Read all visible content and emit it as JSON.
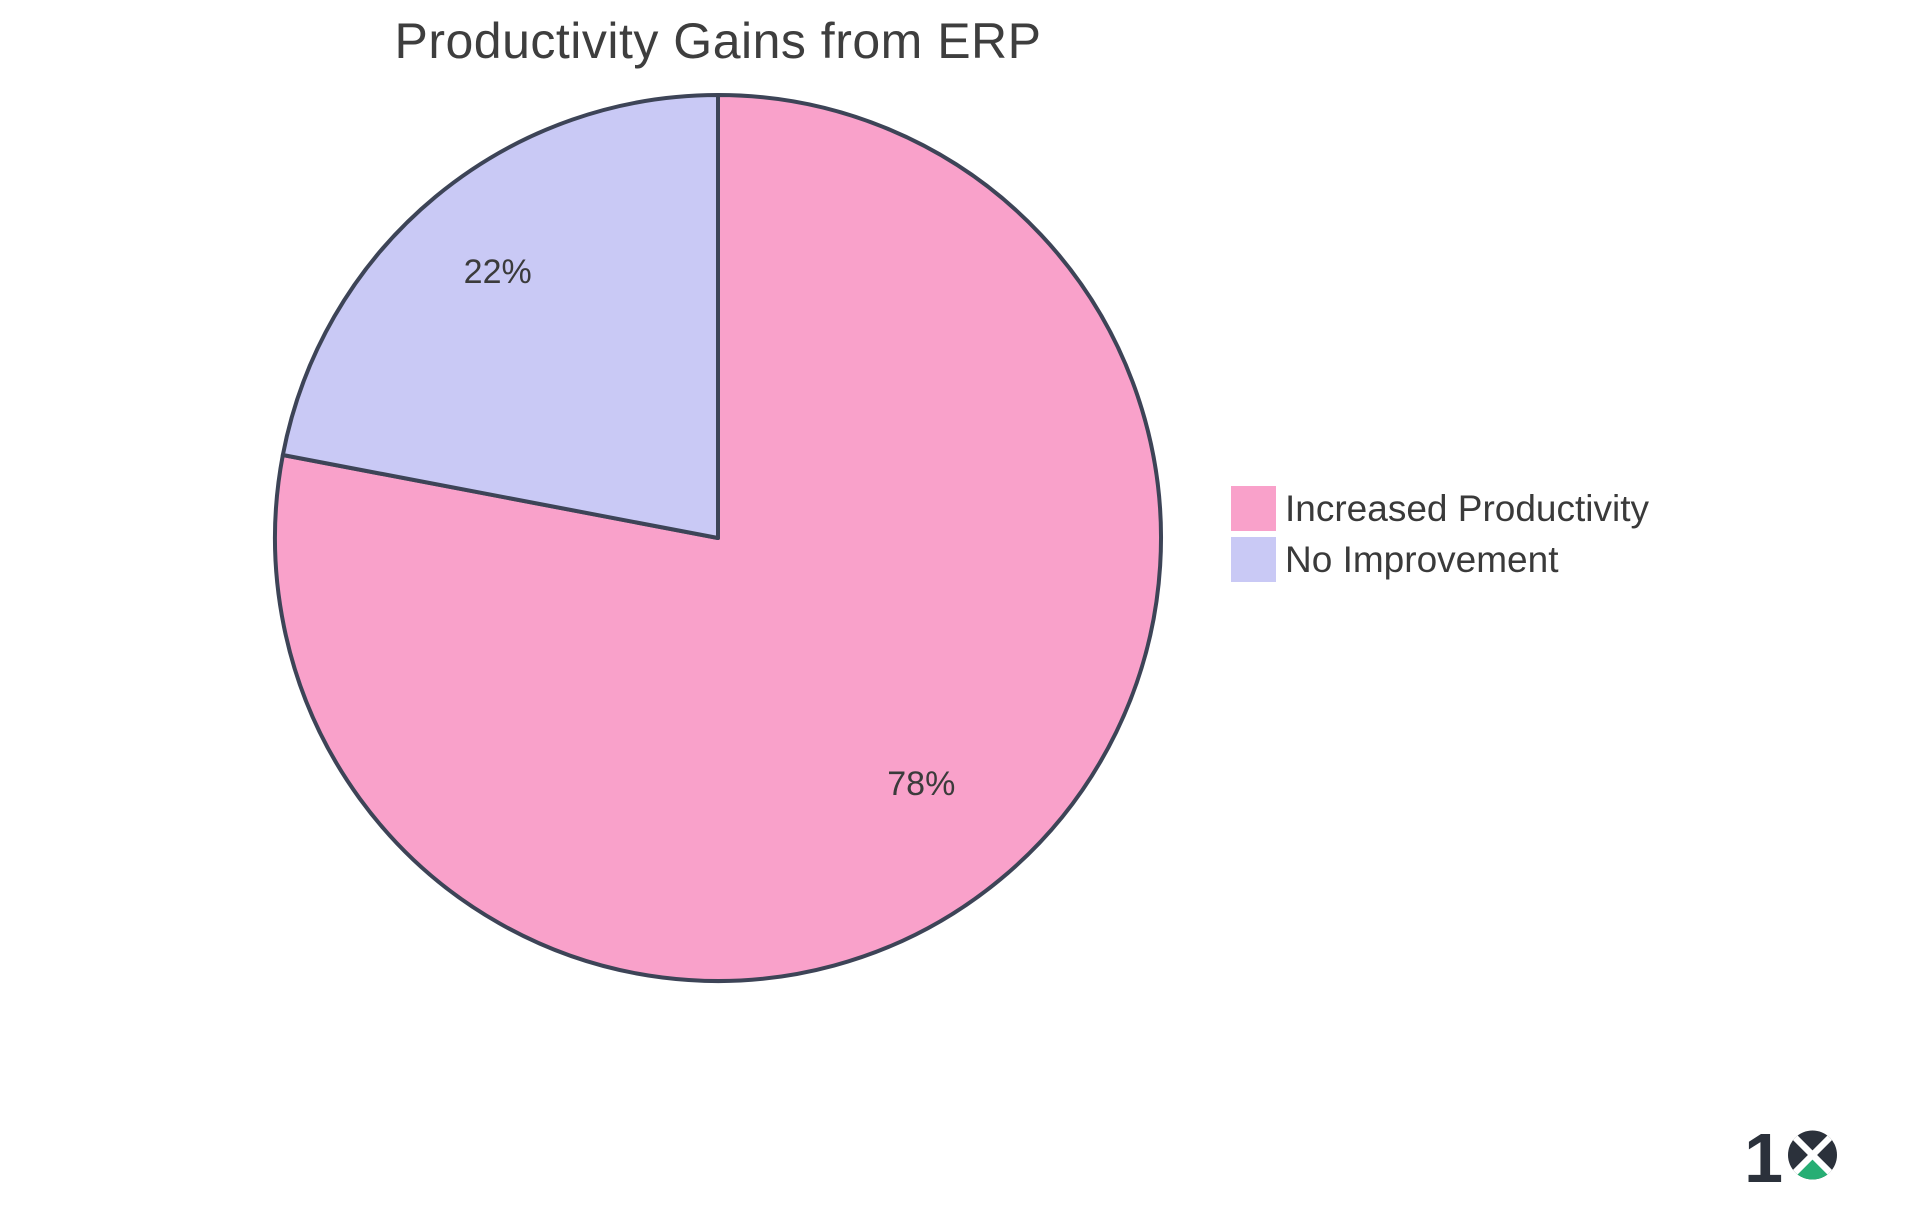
{
  "chart_data": {
    "type": "pie",
    "title": "Productivity Gains from ERP",
    "labels": [
      "Increased Productivity",
      "No Improvement"
    ],
    "values": [
      78,
      22
    ],
    "slice_labels": [
      "78%",
      "22%"
    ],
    "colors": [
      "#F9A1CA",
      "#C9C9F5"
    ],
    "outline_color": "#3D4457",
    "start_angle_deg": 0,
    "direction": "clockwise",
    "legend_position": "right",
    "title_color": "#3E3E3E",
    "slice_label_color": "#3B3B3B",
    "legend_text_color": "#3A3A3A",
    "background_color": "#FFFFFF"
  },
  "legend": {
    "items": [
      {
        "label": "Increased Productivity",
        "color": "#F9A1CA"
      },
      {
        "label": "No Improvement",
        "color": "#C9C9F5"
      }
    ]
  },
  "logo": {
    "numeral": "1",
    "dark_color": "#2B313B",
    "accent_color": "#27AE74",
    "divider_color": "#FFFFFF"
  }
}
